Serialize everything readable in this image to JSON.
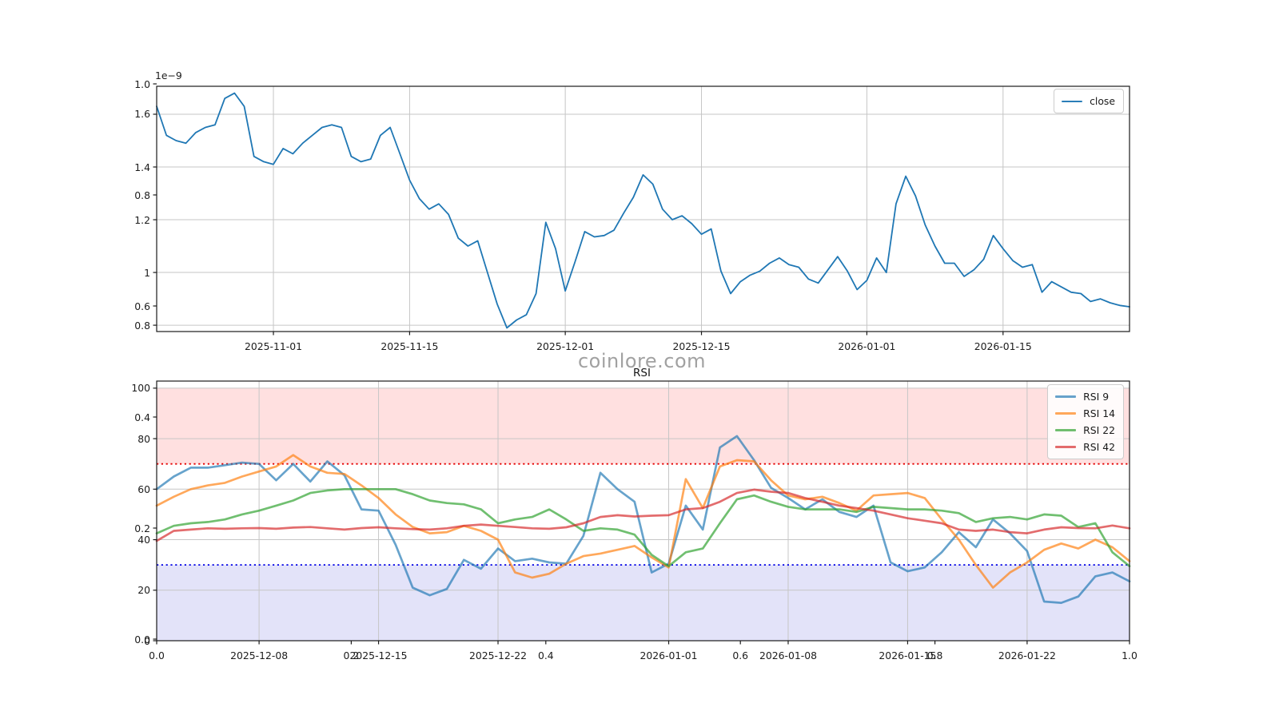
{
  "watermark": {
    "text": "coinlore.com"
  },
  "overlay_axis": {
    "y_labels": [
      "1.0",
      "0.8",
      "0.6",
      "0.4",
      "0.2",
      "0.0"
    ],
    "x_labels": [
      "0.0",
      "0.2",
      "0.4",
      "0.6",
      "0.8",
      "1.0"
    ]
  },
  "chart_data": [
    {
      "id": "price",
      "type": "line",
      "title": "",
      "offset_text": "1e−9",
      "unit_note": "y values in units of 1e-9",
      "x_start_date": "2025-10-20",
      "n_points": 101,
      "x_tick_labels": [
        "2025-11-01",
        "2025-11-15",
        "2025-12-01",
        "2025-12-15",
        "2026-01-01",
        "2026-01-15"
      ],
      "x_tick_indices": [
        12,
        26,
        42,
        56,
        73,
        87
      ],
      "y_ticks": [
        1.6,
        1.4,
        1.2,
        1.0,
        0.8
      ],
      "ylim": [
        0.776,
        1.706
      ],
      "grid": true,
      "legend_position": "upper right",
      "series": [
        {
          "name": "close",
          "color": "#1f77b4",
          "values": [
            1.63,
            1.52,
            1.5,
            1.49,
            1.53,
            1.55,
            1.56,
            1.66,
            1.68,
            1.63,
            1.44,
            1.42,
            1.41,
            1.47,
            1.45,
            1.49,
            1.52,
            1.55,
            1.56,
            1.55,
            1.44,
            1.42,
            1.43,
            1.52,
            1.55,
            1.45,
            1.35,
            1.28,
            1.24,
            1.26,
            1.22,
            1.13,
            1.1,
            1.12,
            1.0,
            0.88,
            0.79,
            0.82,
            0.84,
            0.92,
            1.19,
            1.09,
            0.93,
            1.04,
            1.155,
            1.135,
            1.14,
            1.16,
            1.225,
            1.285,
            1.37,
            1.335,
            1.24,
            1.2,
            1.215,
            1.185,
            1.145,
            1.165,
            1.005,
            0.92,
            0.965,
            0.99,
            1.005,
            1.035,
            1.055,
            1.03,
            1.02,
            0.975,
            0.96,
            1.01,
            1.06,
            1.005,
            0.935,
            0.97,
            1.055,
            1.0,
            1.26,
            1.365,
            1.29,
            1.18,
            1.1,
            1.035,
            1.035,
            0.985,
            1.01,
            1.05,
            1.14,
            1.09,
            1.045,
            1.02,
            1.03,
            0.925,
            0.965,
            0.945,
            0.925,
            0.92,
            0.89,
            0.9,
            0.885,
            0.875,
            0.87
          ]
        }
      ]
    },
    {
      "id": "rsi",
      "type": "line",
      "title": "RSI",
      "x_start_date": "2025-12-02",
      "n_points": 58,
      "x_tick_labels": [
        "2025-12-08",
        "2025-12-15",
        "2025-12-22",
        "2026-01-01",
        "2026-01-08",
        "2026-01-15",
        "2026-01-22"
      ],
      "x_tick_indices": [
        6,
        13,
        20,
        30,
        37,
        44,
        51
      ],
      "y_ticks": [
        100,
        80,
        60,
        40,
        20,
        0
      ],
      "ylim": [
        0,
        102.8
      ],
      "grid": true,
      "legend_position": "upper right",
      "bands": [
        {
          "from": 70,
          "to": 100,
          "color": "rgba(255,0,0,0.12)",
          "meaning": "overbought"
        },
        {
          "from": 0,
          "to": 30,
          "color": "rgba(70,70,215,0.15)",
          "meaning": "oversold"
        }
      ],
      "hlines": [
        {
          "value": 70,
          "color": "#e50000",
          "style": "dotted"
        },
        {
          "value": 30,
          "color": "#0000e5",
          "style": "dotted"
        }
      ],
      "series": [
        {
          "name": "RSI 9",
          "color": "#1f77b4",
          "values": [
            60,
            65,
            68.5,
            68.5,
            69.5,
            70.5,
            70,
            63.5,
            70,
            63,
            71,
            65.5,
            52,
            51.5,
            38,
            21,
            18,
            20.5,
            32,
            28.5,
            36.5,
            31.5,
            32.5,
            31,
            30.5,
            41.5,
            66.5,
            60,
            55,
            27,
            30.5,
            53.5,
            44,
            76.5,
            81,
            71.5,
            60.5,
            56.5,
            52,
            56,
            51,
            49,
            53.5,
            31,
            27.5,
            29,
            35,
            43,
            37,
            48,
            42.5,
            35.5,
            15.5,
            15,
            17.5,
            25.5,
            27,
            23.5
          ]
        },
        {
          "name": "RSI 14",
          "color": "#ff7f0e",
          "values": [
            53.5,
            57,
            60,
            61.5,
            62.5,
            65,
            67,
            69,
            73.5,
            69,
            66.5,
            66,
            61.5,
            56.5,
            50,
            45,
            42.5,
            43,
            45.5,
            43.5,
            40,
            27,
            25,
            26.5,
            30.5,
            33.5,
            34.5,
            36,
            37.5,
            33,
            29,
            64,
            52.5,
            69,
            71.5,
            71,
            63.5,
            57.5,
            56,
            57,
            54.5,
            51.5,
            57.5,
            58,
            58.5,
            56.5,
            48,
            40,
            30,
            21,
            27,
            31,
            36,
            38.5,
            36.5,
            40,
            37,
            31.5
          ]
        },
        {
          "name": "RSI 22",
          "color": "#2ca02c",
          "values": [
            42.5,
            45.5,
            46.5,
            47,
            48,
            50,
            51.5,
            53.5,
            55.5,
            58.5,
            59.5,
            60,
            60,
            60,
            60,
            58,
            55.5,
            54.5,
            54,
            52,
            46.5,
            48,
            49,
            52,
            48,
            43.5,
            44.5,
            44,
            42,
            34,
            29.5,
            35,
            36.5,
            46.5,
            56,
            57.5,
            55,
            53,
            52,
            52,
            52,
            51,
            53,
            52.5,
            52,
            52,
            51.5,
            50.5,
            47,
            48.5,
            49,
            48,
            50,
            49.5,
            45,
            46.5,
            35,
            29.5
          ]
        },
        {
          "name": "RSI 42",
          "color": "#d62728",
          "values": [
            39.5,
            43.5,
            44,
            44.5,
            44.3,
            44.5,
            44.6,
            44.3,
            44.8,
            45,
            44.5,
            44,
            44.6,
            44.9,
            44.5,
            44.2,
            44,
            44.5,
            45.5,
            46,
            45.5,
            45,
            44.5,
            44.3,
            44.9,
            46.5,
            49,
            49.7,
            49.2,
            49.5,
            49.7,
            52,
            52.5,
            55,
            58.5,
            59.8,
            59,
            58.5,
            56.5,
            55,
            53.5,
            52.5,
            51.5,
            50,
            48.5,
            47.5,
            46.5,
            44,
            43.5,
            44,
            43,
            42.5,
            44,
            44.9,
            44.6,
            44.5,
            45.6,
            44.5
          ]
        }
      ]
    }
  ]
}
